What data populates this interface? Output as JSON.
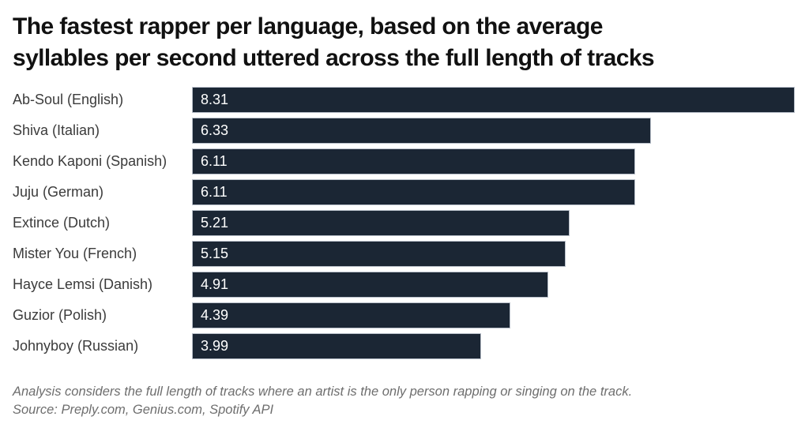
{
  "header": {
    "title_lines": [
      "The fastest rapper per language, based on the average",
      "syllables per second uttered across the full length of tracks"
    ]
  },
  "chart_data": {
    "type": "bar",
    "orientation": "horizontal",
    "title": "The fastest rapper per language, based on the average syllables per second uttered across the full length of tracks",
    "categories": [
      "Ab-Soul (English)",
      "Shiva (Italian)",
      "Kendo Kaponi (Spanish)",
      "Juju (German)",
      "Extince (Dutch)",
      "Mister You (French)",
      "Hayce Lemsi (Danish)",
      "Guzior (Polish)",
      "Johnyboy (Russian)"
    ],
    "values": [
      8.31,
      6.33,
      6.11,
      6.11,
      5.21,
      5.15,
      4.91,
      4.39,
      3.99
    ],
    "value_labels": [
      "8.31",
      "6.33",
      "6.11",
      "6.11",
      "5.21",
      "5.15",
      "4.91",
      "4.39",
      "3.99"
    ],
    "xlabel": "",
    "ylabel": "",
    "xlim": [
      0,
      8.31
    ],
    "grid": false,
    "legend": false,
    "bar_color": "#1b2634",
    "bar_border_color": "#b9c0ca",
    "bar_label_color": "#ffffff"
  },
  "footer": {
    "note": "Analysis considers the full length of tracks where an artist is the only person rapping or singing on the track.",
    "source": "Source: Preply.com, Genius.com, Spotify API"
  }
}
